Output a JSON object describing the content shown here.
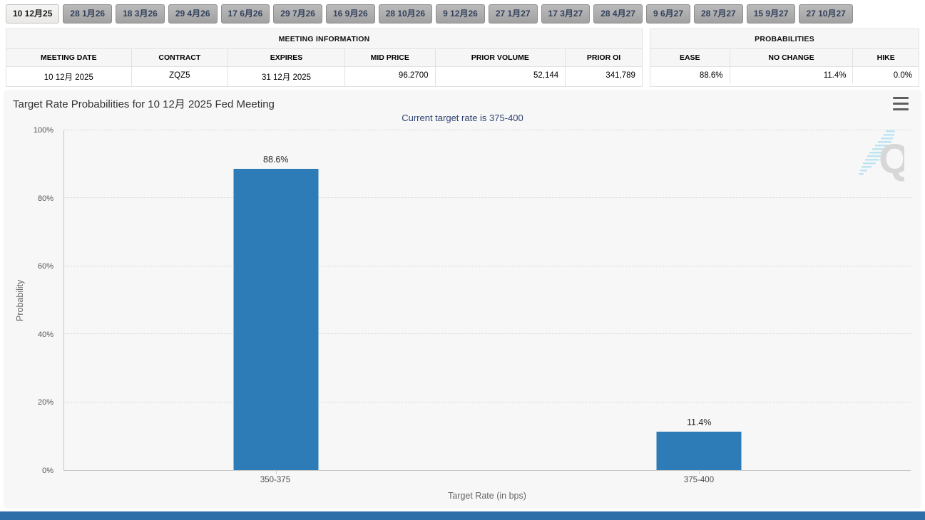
{
  "tabs": {
    "items": [
      {
        "label": "10 12月25",
        "selected": true
      },
      {
        "label": "28 1月26",
        "selected": false
      },
      {
        "label": "18 3月26",
        "selected": false
      },
      {
        "label": "29 4月26",
        "selected": false
      },
      {
        "label": "17 6月26",
        "selected": false
      },
      {
        "label": "29 7月26",
        "selected": false
      },
      {
        "label": "16 9月26",
        "selected": false
      },
      {
        "label": "28 10月26",
        "selected": false
      },
      {
        "label": "9 12月26",
        "selected": false
      },
      {
        "label": "27 1月27",
        "selected": false
      },
      {
        "label": "17 3月27",
        "selected": false
      },
      {
        "label": "28 4月27",
        "selected": false
      },
      {
        "label": "9 6月27",
        "selected": false
      },
      {
        "label": "28 7月27",
        "selected": false
      },
      {
        "label": "15 9月27",
        "selected": false
      },
      {
        "label": "27 10月27",
        "selected": false
      }
    ]
  },
  "meeting_info": {
    "title": "MEETING INFORMATION",
    "columns": [
      "MEETING DATE",
      "CONTRACT",
      "EXPIRES",
      "MID PRICE",
      "PRIOR VOLUME",
      "PRIOR OI"
    ],
    "values": [
      "10 12月 2025",
      "ZQZ5",
      "31 12月 2025",
      "96.2700",
      "52,144",
      "341,789"
    ]
  },
  "probabilities": {
    "title": "PROBABILITIES",
    "columns": [
      "EASE",
      "NO CHANGE",
      "HIKE"
    ],
    "values": [
      "88.6%",
      "11.4%",
      "0.0%"
    ]
  },
  "chart_data": {
    "type": "bar",
    "title": "Target Rate Probabilities for 10 12月 2025 Fed Meeting",
    "subtitle": "Current target rate is 375-400",
    "categories": [
      "350-375",
      "375-400"
    ],
    "values": [
      88.6,
      11.4
    ],
    "data_labels": [
      "88.6%",
      "11.4%"
    ],
    "xlabel": "Target Rate (in bps)",
    "ylabel": "Probability",
    "ylim": [
      0,
      100
    ],
    "yticks": [
      0,
      20,
      40,
      60,
      80,
      100
    ],
    "ytick_labels": [
      "0%",
      "20%",
      "40%",
      "60%",
      "80%",
      "100%"
    ],
    "grid": "horizontal-dotted",
    "legend": "none",
    "bar_color": "#2d7cb8"
  },
  "colors": {
    "bar": "#2d7cb8",
    "subtitle_text": "#2e4372",
    "footer_bar": "#2d6ea8",
    "chart_background": "#f7f7f7"
  },
  "icons": {
    "chart_menu": "hamburger-icon",
    "watermark": "quikstrike-q-logo"
  }
}
